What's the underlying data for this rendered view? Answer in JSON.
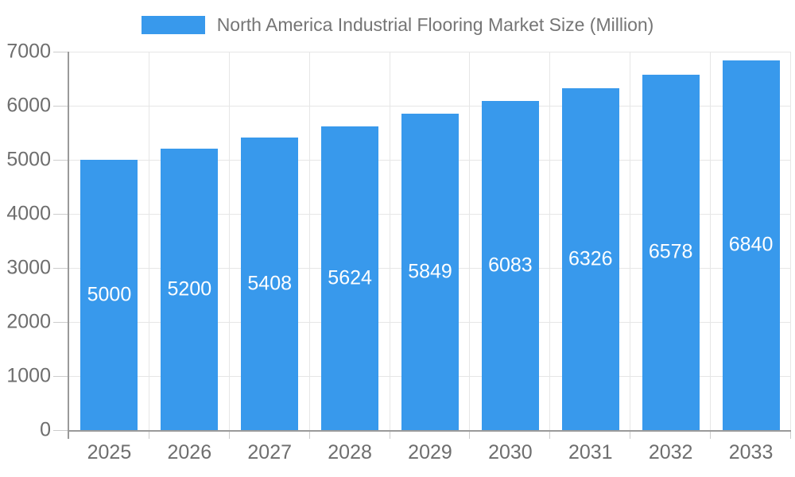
{
  "chart_data": {
    "type": "bar",
    "title": "North America Industrial Flooring Market Size (Million)",
    "categories": [
      "2025",
      "2026",
      "2027",
      "2028",
      "2029",
      "2030",
      "2031",
      "2032",
      "2033"
    ],
    "values": [
      5000,
      5200,
      5408,
      5624,
      5849,
      6083,
      6326,
      6578,
      6840
    ],
    "xlabel": "",
    "ylabel": "",
    "ylim": [
      0,
      7000
    ],
    "yticks": [
      0,
      1000,
      2000,
      3000,
      4000,
      5000,
      6000,
      7000
    ],
    "grid": "on",
    "legend_position": "top-center",
    "bar_value_labels": "inside-middle"
  },
  "colors": {
    "bar": "#3899EC",
    "bar_label": "#FFFFFF",
    "axis_text": "#6E6E6E",
    "legend_text": "#757575",
    "grid_line": "#E6E6E6",
    "axis_line": "#9A9A9A",
    "tick": "#CCCCCC"
  }
}
